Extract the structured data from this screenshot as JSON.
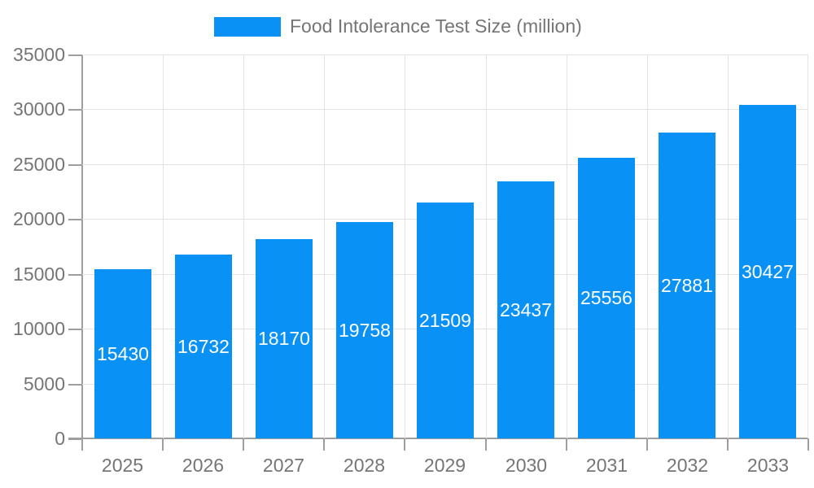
{
  "chart_data": {
    "type": "bar",
    "title": "",
    "legend": "Food Intolerance Test Size (million)",
    "legend_position": "top",
    "categories": [
      "2025",
      "2026",
      "2027",
      "2028",
      "2029",
      "2030",
      "2031",
      "2032",
      "2033"
    ],
    "values": [
      15430,
      16732,
      18170,
      19758,
      21509,
      23437,
      25556,
      27881,
      30427
    ],
    "xlabel": "",
    "ylabel": "",
    "ylim": [
      0,
      35000
    ],
    "yticks": [
      0,
      5000,
      10000,
      15000,
      20000,
      25000,
      30000,
      35000
    ],
    "grid": true,
    "value_label_position": "inside-center",
    "colors": {
      "bar": "#0a91f5",
      "text": "#757575",
      "grid": "#e3e3e3",
      "axis": "#9e9e9e",
      "value_label": "#ffffff",
      "background": "#ffffff"
    }
  }
}
